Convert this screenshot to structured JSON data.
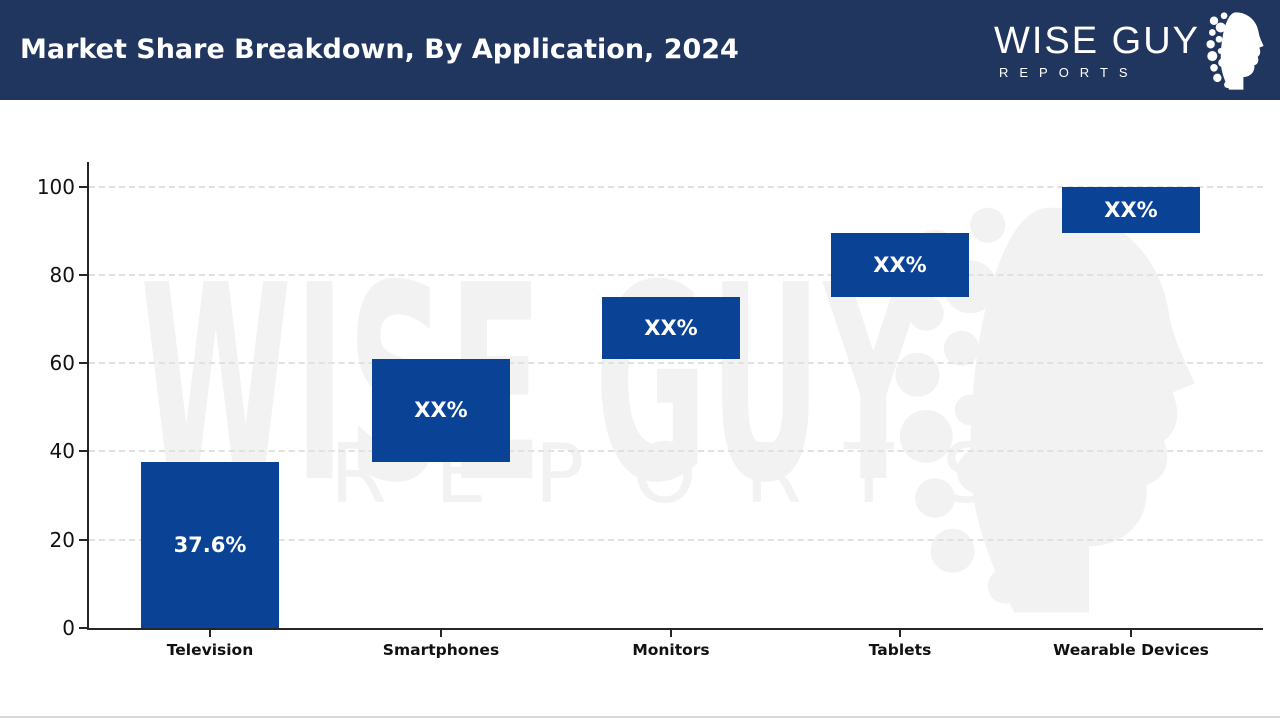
{
  "header": {
    "title": "Market Share Breakdown, By Application, 2024",
    "background_color": "#21365f",
    "logo": {
      "line1": "WISE GUY",
      "line2": "REPORTS",
      "icon": "dotted-face-profile"
    }
  },
  "watermark": {
    "line1": "WISE GUY",
    "line2": "REPORTS",
    "icon": "dotted-face-profile"
  },
  "chart_data": {
    "type": "bar",
    "subtype": "waterfall",
    "title": "Market Share Breakdown, By Application, 2024",
    "categories": [
      "Television",
      "Smartphones",
      "Monitors",
      "Tablets",
      "Wearable Devices"
    ],
    "series": [
      {
        "name": "Market Share",
        "segments": [
          {
            "category": "Television",
            "start": 0,
            "end": 37.6,
            "label": "37.6%"
          },
          {
            "category": "Smartphones",
            "start": 37.6,
            "end": 61,
            "label": "XX%"
          },
          {
            "category": "Monitors",
            "start": 61,
            "end": 75,
            "label": "XX%"
          },
          {
            "category": "Tablets",
            "start": 75,
            "end": 89.5,
            "label": "XX%"
          },
          {
            "category": "Wearable Devices",
            "start": 89.5,
            "end": 100,
            "label": "XX%"
          }
        ]
      }
    ],
    "xlabel": "",
    "ylabel": "",
    "yticks": [
      0,
      20,
      40,
      60,
      80,
      100
    ],
    "ylim": [
      0,
      105
    ],
    "grid": "horizontal-dashed",
    "legend": "none",
    "bar_color": "#0a4296",
    "bar_label_color": "#ffffff",
    "axis_color": "#262626",
    "gridline_color": "#e1e1e1"
  }
}
